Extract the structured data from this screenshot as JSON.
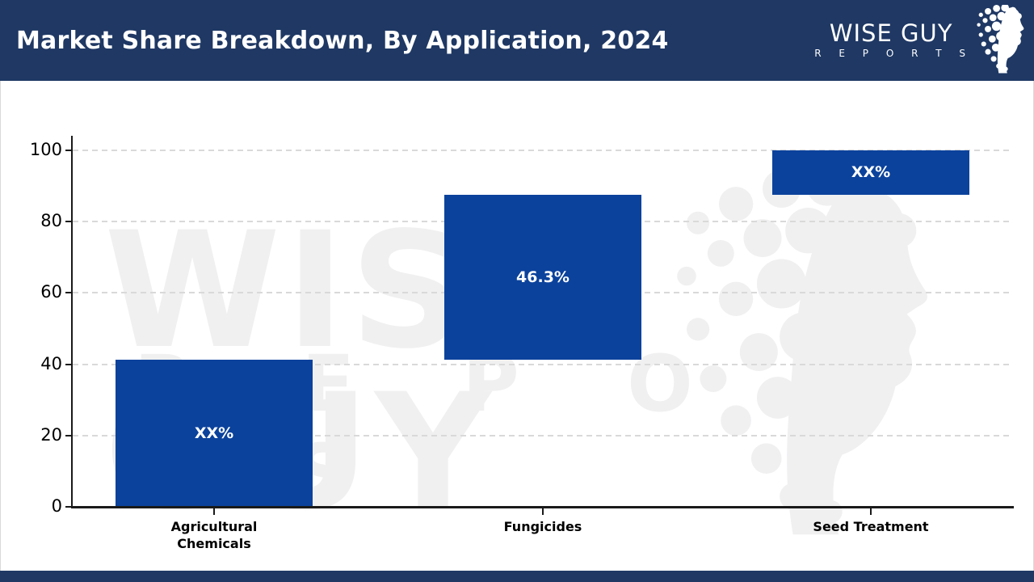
{
  "header": {
    "title": "Market Share Breakdown, By Application, 2024",
    "bg_color": "#1F3864",
    "logo": {
      "name": "WISE GUY",
      "tagline": "R E P O R T S"
    }
  },
  "watermark": {
    "name": "WISE GUY",
    "tagline": "R E P O R T S"
  },
  "chart_data": {
    "type": "bar",
    "subtype": "waterfall",
    "title": "Market Share Breakdown, By Application, 2024",
    "categories": [
      "Agricultural\nChemicals",
      "Fungicides",
      "Seed Treatment"
    ],
    "segments": [
      {
        "category": "Agricultural Chemicals",
        "start": 0,
        "end": 41.3,
        "label": "XX%"
      },
      {
        "category": "Fungicides",
        "start": 41.3,
        "end": 87.6,
        "label": "46.3%"
      },
      {
        "category": "Seed Treatment",
        "start": 87.6,
        "end": 100,
        "label": "XX%"
      }
    ],
    "yticks": [
      0,
      20,
      40,
      60,
      80,
      100
    ],
    "ylim": [
      0,
      104
    ],
    "xlabel": "",
    "ylabel": "",
    "grid": "horizontal-dashed",
    "legend": "none",
    "bar_color": "#0B429C",
    "bar_label_color": "#FFFFFF",
    "axis_color": "#1a1a1a",
    "gridline_color": "#d9d9d9"
  }
}
